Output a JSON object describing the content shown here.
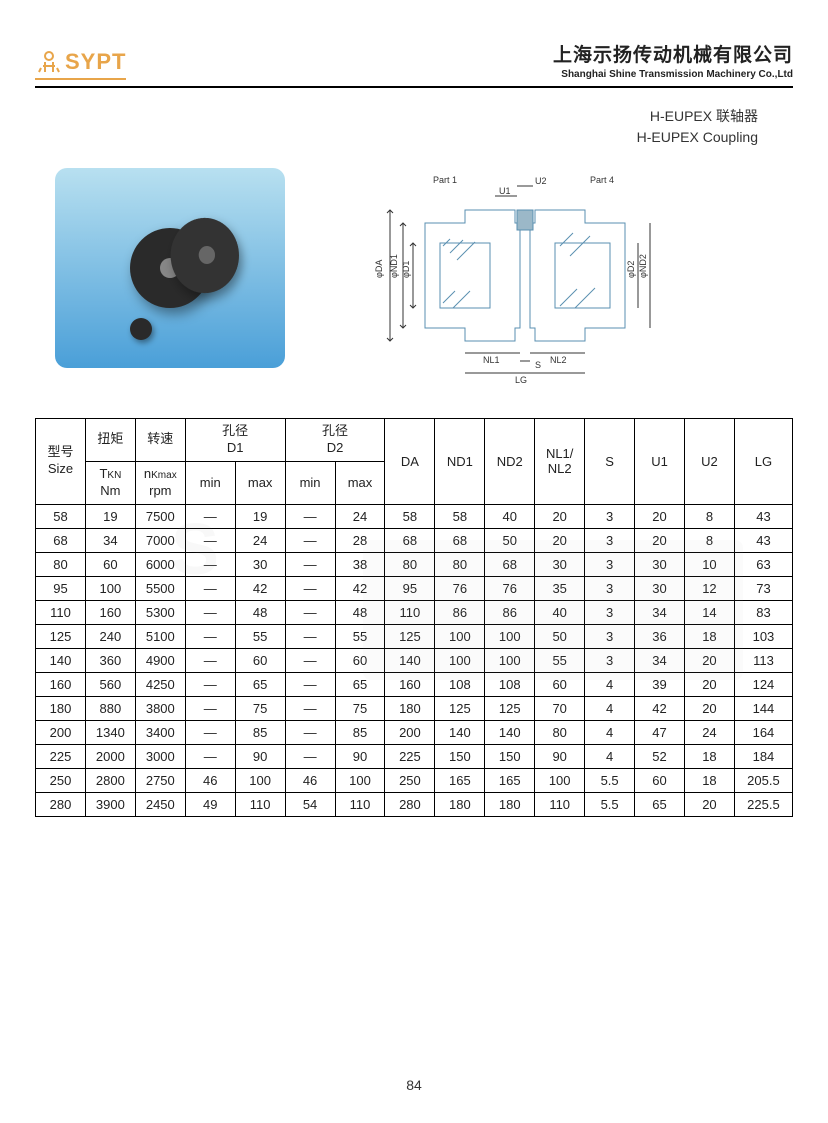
{
  "header": {
    "logo_text": "SYPT",
    "company_zh": "上海示扬传动机械有限公司",
    "company_en": "Shanghai Shine Transmission Machinery Co.,Ltd"
  },
  "subtitle": {
    "zh": "H-EUPEX 联轴器",
    "en": "H-EUPEX Coupling"
  },
  "diagram_labels": {
    "part1": "Part 1",
    "part4": "Part 4",
    "u1": "U1",
    "u2": "U2",
    "da": "φDA",
    "nd1": "φND1",
    "d1": "φD1",
    "d2": "φD2",
    "nd2": "φND2",
    "nl1": "NL1",
    "nl2": "NL2",
    "s": "S",
    "lg": "LG"
  },
  "table": {
    "headers": {
      "size_zh": "型号",
      "size_en": "Size",
      "torque_zh": "扭矩",
      "torque_sym": "T",
      "torque_sub": "KN",
      "torque_unit": "Nm",
      "speed_zh": "转速",
      "speed_sym": "n",
      "speed_sub": "Kmax",
      "speed_unit": "rpm",
      "bore_zh": "孔径",
      "d1": "D1",
      "d2": "D2",
      "min": "min",
      "max": "max",
      "da": "DA",
      "nd1": "ND1",
      "nd2": "ND2",
      "nl": "NL1/\nNL2",
      "s": "S",
      "u1": "U1",
      "u2": "U2",
      "lg": "LG"
    },
    "rows": [
      [
        "58",
        "19",
        "7500",
        "—",
        "19",
        "—",
        "24",
        "58",
        "58",
        "40",
        "20",
        "3",
        "20",
        "8",
        "43"
      ],
      [
        "68",
        "34",
        "7000",
        "—",
        "24",
        "—",
        "28",
        "68",
        "68",
        "50",
        "20",
        "3",
        "20",
        "8",
        "43"
      ],
      [
        "80",
        "60",
        "6000",
        "—",
        "30",
        "—",
        "38",
        "80",
        "80",
        "68",
        "30",
        "3",
        "30",
        "10",
        "63"
      ],
      [
        "95",
        "100",
        "5500",
        "—",
        "42",
        "—",
        "42",
        "95",
        "76",
        "76",
        "35",
        "3",
        "30",
        "12",
        "73"
      ],
      [
        "110",
        "160",
        "5300",
        "—",
        "48",
        "—",
        "48",
        "110",
        "86",
        "86",
        "40",
        "3",
        "34",
        "14",
        "83"
      ],
      [
        "125",
        "240",
        "5100",
        "—",
        "55",
        "—",
        "55",
        "125",
        "100",
        "100",
        "50",
        "3",
        "36",
        "18",
        "103"
      ],
      [
        "140",
        "360",
        "4900",
        "—",
        "60",
        "—",
        "60",
        "140",
        "100",
        "100",
        "55",
        "3",
        "34",
        "20",
        "113"
      ],
      [
        "160",
        "560",
        "4250",
        "—",
        "65",
        "—",
        "65",
        "160",
        "108",
        "108",
        "60",
        "4",
        "39",
        "20",
        "124"
      ],
      [
        "180",
        "880",
        "3800",
        "—",
        "75",
        "—",
        "75",
        "180",
        "125",
        "125",
        "70",
        "4",
        "42",
        "20",
        "144"
      ],
      [
        "200",
        "1340",
        "3400",
        "—",
        "85",
        "—",
        "85",
        "200",
        "140",
        "140",
        "80",
        "4",
        "47",
        "24",
        "164"
      ],
      [
        "225",
        "2000",
        "3000",
        "—",
        "90",
        "—",
        "90",
        "225",
        "150",
        "150",
        "90",
        "4",
        "52",
        "18",
        "184"
      ],
      [
        "250",
        "2800",
        "2750",
        "46",
        "100",
        "46",
        "100",
        "250",
        "165",
        "165",
        "100",
        "5.5",
        "60",
        "18",
        "205.5"
      ],
      [
        "280",
        "3900",
        "2450",
        "49",
        "110",
        "54",
        "110",
        "280",
        "180",
        "180",
        "110",
        "5.5",
        "65",
        "20",
        "225.5"
      ]
    ]
  },
  "page_number": "84",
  "colors": {
    "accent": "#e8a54a",
    "border": "#000000",
    "text": "#222222",
    "gradient_top": "#b8e0f0",
    "gradient_bottom": "#4a9fd8"
  }
}
